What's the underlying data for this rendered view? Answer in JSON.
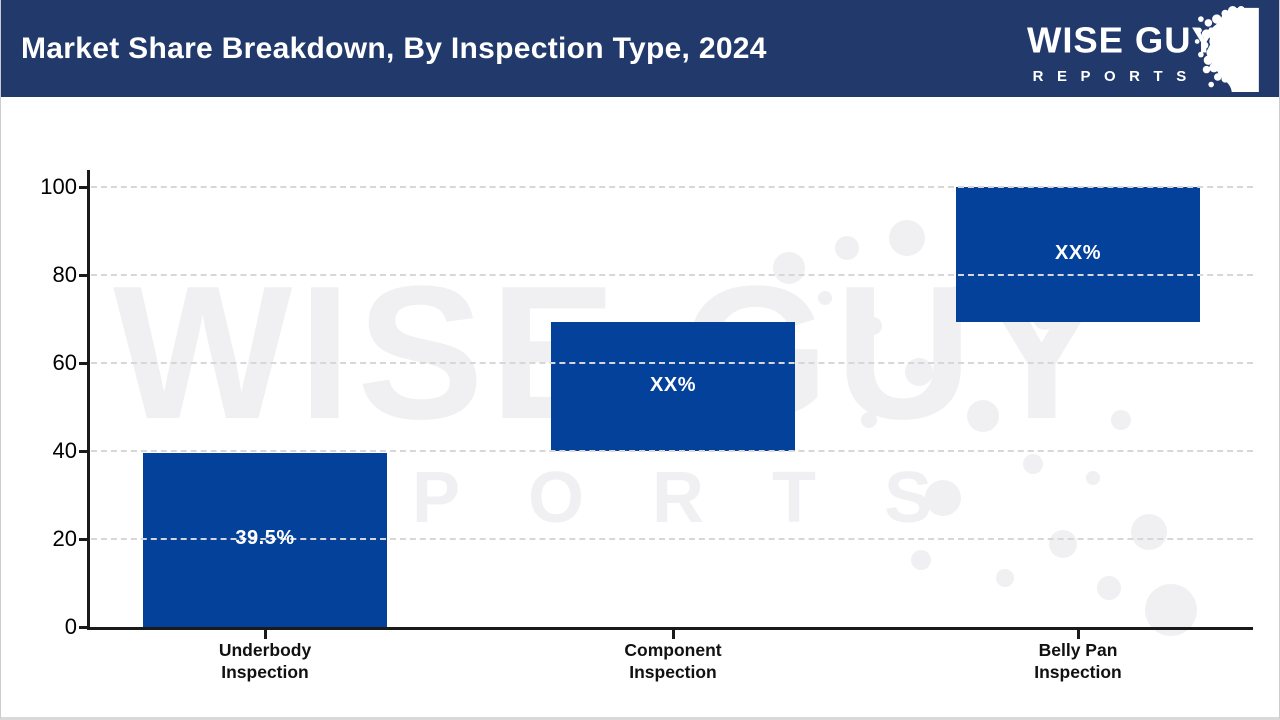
{
  "header": {
    "title": "Market Share Breakdown, By Inspection Type, 2024",
    "logo": {
      "line1": "WISE GUY",
      "line2": "REPORTS"
    }
  },
  "watermark": {
    "line1": "WISE GUY",
    "line2": "REPORTS"
  },
  "colors": {
    "header_bg": "#21396b",
    "bar": "#04419b",
    "bar_label": "#ffffff",
    "gridline": "#d7d7d7",
    "axis": "#1a1a1a",
    "watermark": "#f0f0f2"
  },
  "chart_data": {
    "type": "bar",
    "subtype": "waterfall",
    "title": "Market Share Breakdown, By Inspection Type, 2024",
    "xlabel": "",
    "ylabel": "",
    "ylim": [
      0,
      100
    ],
    "yticks": [
      0,
      20,
      40,
      60,
      80,
      100
    ],
    "grid": "horizontal-dashed, drawn above bars",
    "legend": "none",
    "categories": [
      [
        "Underbody",
        "Inspection"
      ],
      [
        "Component",
        "Inspection"
      ],
      [
        "Belly Pan",
        "Inspection"
      ]
    ],
    "segments": [
      {
        "label": "39.5%",
        "start": 0,
        "end": 39.5
      },
      {
        "label": "XX%",
        "start": 40,
        "end": 69.3
      },
      {
        "label": "XX%",
        "start": 69.3,
        "end": 100
      }
    ]
  }
}
